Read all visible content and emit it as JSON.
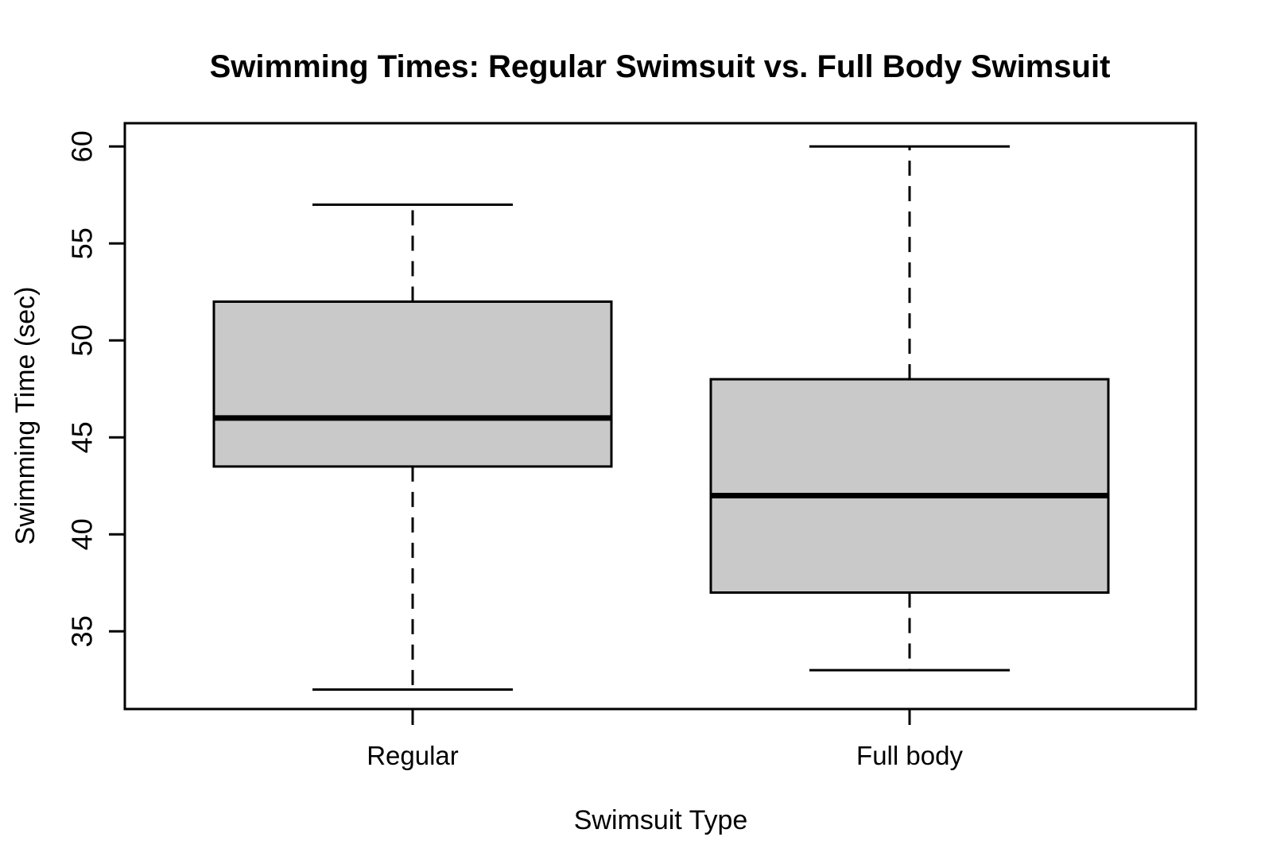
{
  "figure": {
    "title": "Swimming Times: Regular Swimsuit vs. Full Body Swimsuit",
    "xlabel": "Swimsuit Type",
    "ylabel": "Swimming Time (sec)"
  },
  "chart_data": {
    "type": "boxplot",
    "title": "Swimming Times: Regular Swimsuit vs. Full Body Swimsuit",
    "xlabel": "Swimsuit Type",
    "ylabel": "Swimming Time (sec)",
    "categories": [
      "Regular",
      "Full body"
    ],
    "series": [
      {
        "name": "Regular",
        "min": 32,
        "q1": 43.5,
        "median": 46,
        "q3": 52,
        "max": 57
      },
      {
        "name": "Full body",
        "min": 33,
        "q1": 37,
        "median": 42,
        "q3": 48,
        "max": 60
      }
    ],
    "y_ticks": [
      35,
      40,
      45,
      50,
      55,
      60
    ],
    "ylim": [
      31,
      61.3
    ],
    "grid": false,
    "legend": false,
    "colors": {
      "box_fill": "#C9C9C9",
      "line": "#000000",
      "background": "#FFFFFF"
    }
  }
}
